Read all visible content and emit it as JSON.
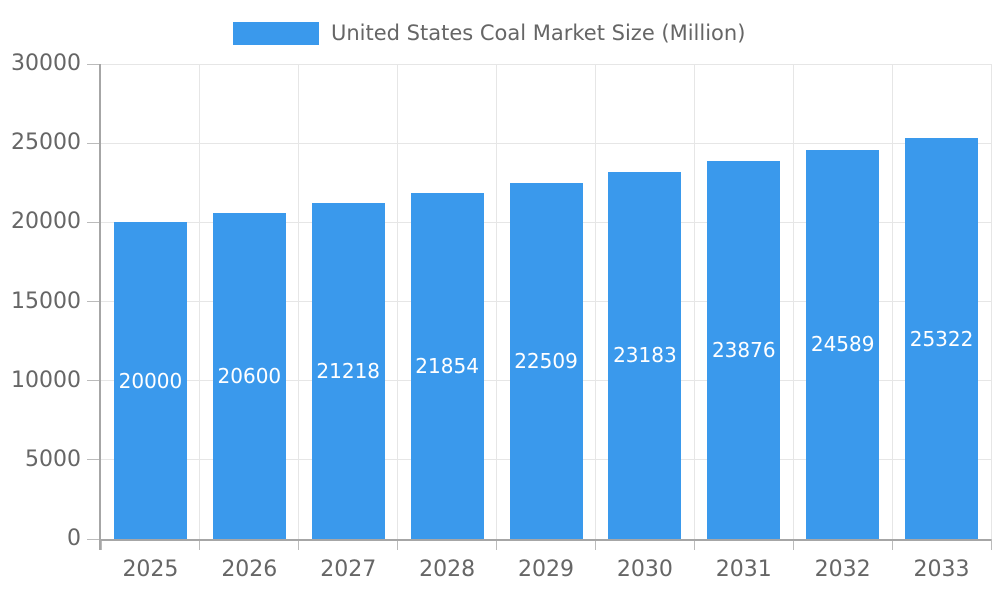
{
  "page": {
    "background": "#FFFFFF"
  },
  "colors": {
    "bar": "#3A99EC",
    "bar_value_label": "#FFFFFF",
    "axis_text": "#666666",
    "grid_line": "#E6E6E6",
    "tick_mark": "#BBBBBB",
    "axis_line": "#A6A6A6"
  },
  "chart_data": {
    "type": "bar",
    "title": "United States Coal Market Size (Million)",
    "legend": [
      "United States Coal Market Size (Million)"
    ],
    "legend_position": "top",
    "categories": [
      "2025",
      "2026",
      "2027",
      "2028",
      "2029",
      "2030",
      "2031",
      "2032",
      "2033"
    ],
    "values": [
      20000,
      20600,
      21218,
      21854,
      22509,
      23183,
      23876,
      24589,
      25322
    ],
    "xlabel": "",
    "ylabel": "",
    "ylim": [
      0,
      30000
    ],
    "yticks": [
      0,
      5000,
      10000,
      15000,
      20000,
      25000,
      30000
    ],
    "grid": true,
    "value_labels_position": "inside-center"
  }
}
